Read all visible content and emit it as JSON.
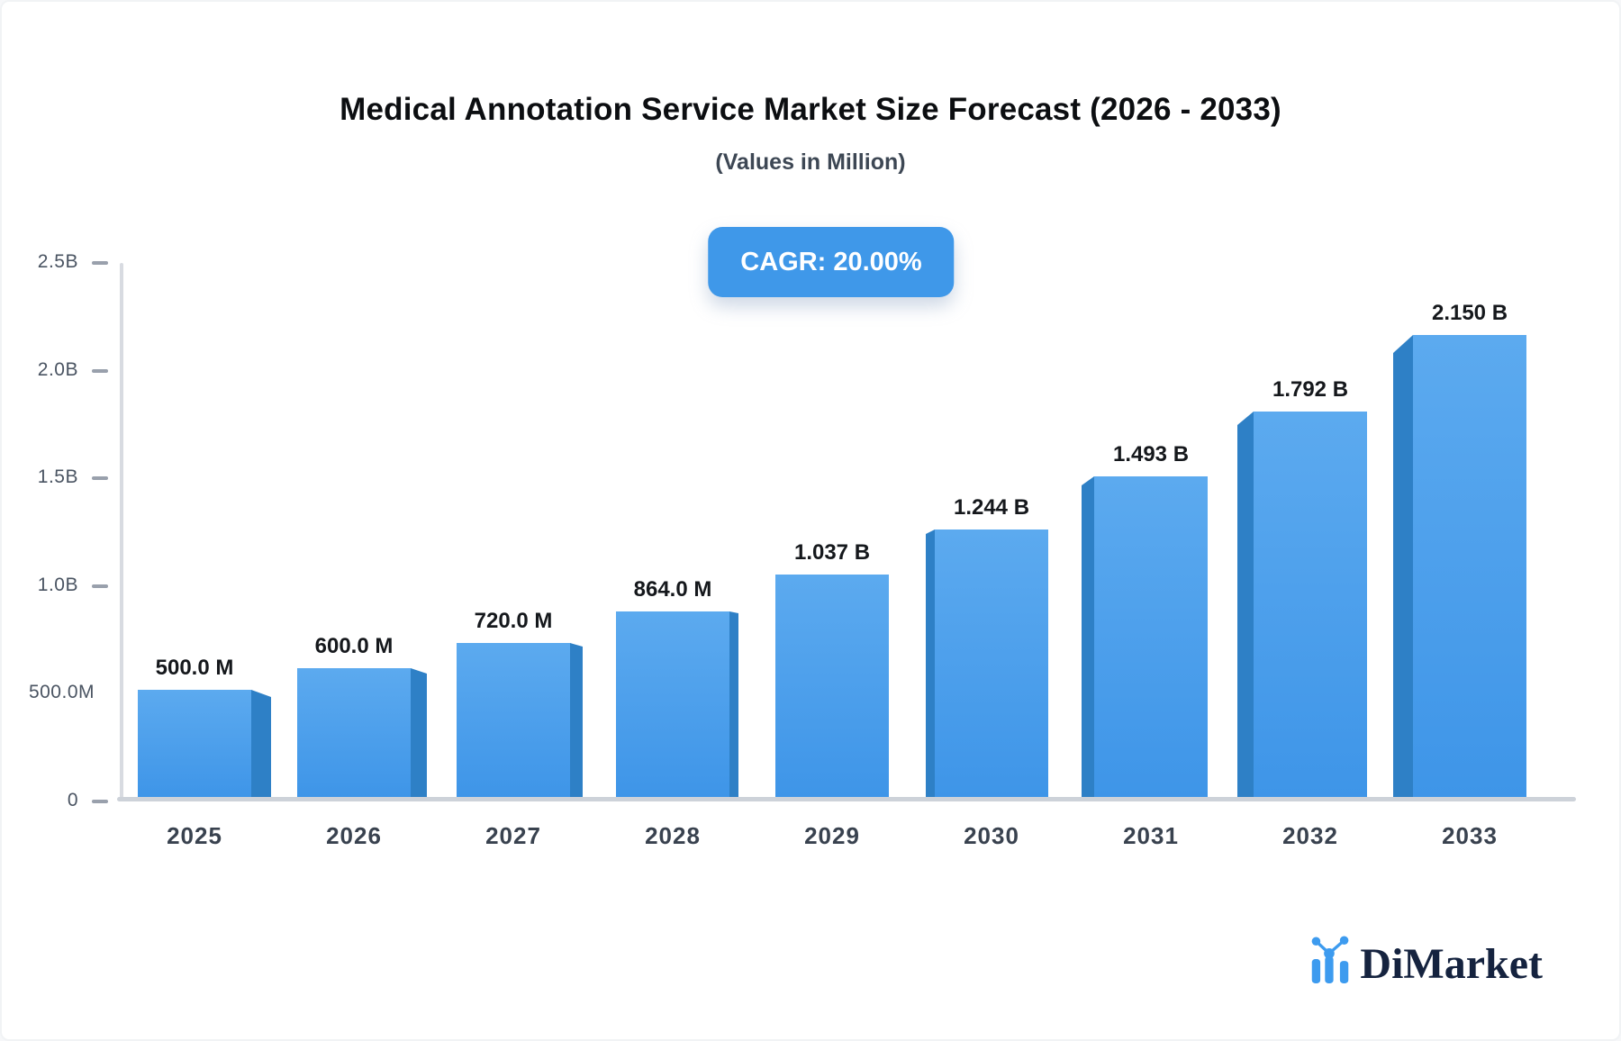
{
  "title": "Medical Annotation Service Market Size Forecast (2026 - 2033)",
  "subtitle": "(Values in Million)",
  "badge": {
    "label": "CAGR: 20.00%"
  },
  "logo": {
    "name": "DiMarket",
    "icon": "bar-chart-icon"
  },
  "colors": {
    "badge_bg": "#3f98e9",
    "bar_face_top": "#5caaef",
    "bar_face_bottom": "#3e95e8",
    "bar_side": "#2e80c6",
    "logo_icon": "#3d9bef",
    "axis_line": "#d8dbe1",
    "baseline": "#cdd2d9"
  },
  "chart_data": {
    "type": "bar",
    "title": "Medical Annotation Service Market Size Forecast (2026 - 2033)",
    "subtitle": "(Values in Million)",
    "cagr_percent": 20.0,
    "unit": "Million USD",
    "xlabel": "",
    "ylabel": "",
    "ylim": [
      0,
      2500
    ],
    "grid": false,
    "legend_position": "none",
    "categories": [
      "2025",
      "2026",
      "2027",
      "2028",
      "2029",
      "2030",
      "2031",
      "2032",
      "2033"
    ],
    "values": [
      500,
      600,
      720,
      864,
      1037,
      1244,
      1493,
      1792,
      2150
    ],
    "bars": [
      {
        "year": "2025",
        "value_millions": 500,
        "label": "500.0 M"
      },
      {
        "year": "2026",
        "value_millions": 600,
        "label": "600.0 M"
      },
      {
        "year": "2027",
        "value_millions": 720,
        "label": "720.0 M"
      },
      {
        "year": "2028",
        "value_millions": 864,
        "label": "864.0 M"
      },
      {
        "year": "2029",
        "value_millions": 1037,
        "label": "1.037 B"
      },
      {
        "year": "2030",
        "value_millions": 1244,
        "label": "1.244 B"
      },
      {
        "year": "2031",
        "value_millions": 1493,
        "label": "1.493 B"
      },
      {
        "year": "2032",
        "value_millions": 1792,
        "label": "1.792 B"
      },
      {
        "year": "2033",
        "value_millions": 2150,
        "label": "2.150 B"
      }
    ],
    "y_ticks": [
      {
        "label": "2.5B",
        "value_millions": 2500,
        "dash": true
      },
      {
        "label": "2.0B",
        "value_millions": 2000,
        "dash": true
      },
      {
        "label": "1.5B",
        "value_millions": 1500,
        "dash": true
      },
      {
        "label": "1.0B",
        "value_millions": 1000,
        "dash": true
      },
      {
        "label": "500.0M",
        "value_millions": 500,
        "dash": false
      },
      {
        "label": "0",
        "value_millions": 0,
        "dash": true
      }
    ]
  }
}
